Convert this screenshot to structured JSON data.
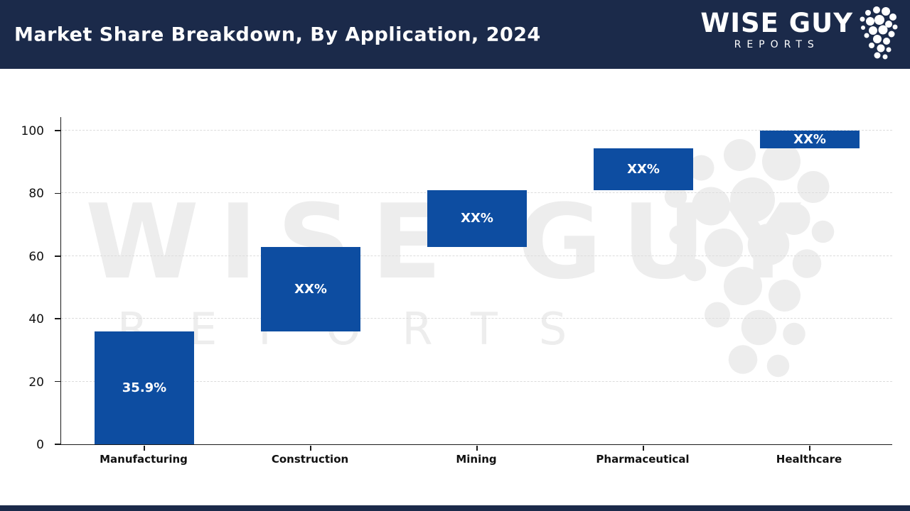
{
  "header": {
    "title": "Market Share Breakdown, By Application, 2024",
    "logo": {
      "line1": "WISE GUY",
      "line2": "REPORTS"
    }
  },
  "watermark": {
    "line1": "WISE GUY",
    "line2": "REPORTS"
  },
  "colors": {
    "header_bg": "#1b2a4a",
    "bar": "#0d4da1",
    "gridline": "#dcdcdc",
    "watermark": "#ededed"
  },
  "chart_data": {
    "type": "bar",
    "variant": "waterfall",
    "title": "Market Share Breakdown, By Application, 2024",
    "categories": [
      "Manufacturing",
      "Construction",
      "Mining",
      "Pharmaceutical",
      "Healthcare"
    ],
    "segments": [
      {
        "category": "Manufacturing",
        "start": 0,
        "end": 35.9,
        "label": "35.9%"
      },
      {
        "category": "Construction",
        "start": 35.9,
        "end": 62.9,
        "label": "XX%"
      },
      {
        "category": "Mining",
        "start": 62.9,
        "end": 81.0,
        "label": "XX%"
      },
      {
        "category": "Pharmaceutical",
        "start": 81.0,
        "end": 94.3,
        "label": "XX%"
      },
      {
        "category": "Healthcare",
        "start": 94.3,
        "end": 100.0,
        "label": "XX%"
      }
    ],
    "ylim": [
      0,
      100
    ],
    "yticks": [
      0,
      20,
      40,
      60,
      80,
      100
    ],
    "xlabel": "",
    "ylabel": "",
    "bar_color": "#0d4da1",
    "grid": true,
    "legend": false
  }
}
